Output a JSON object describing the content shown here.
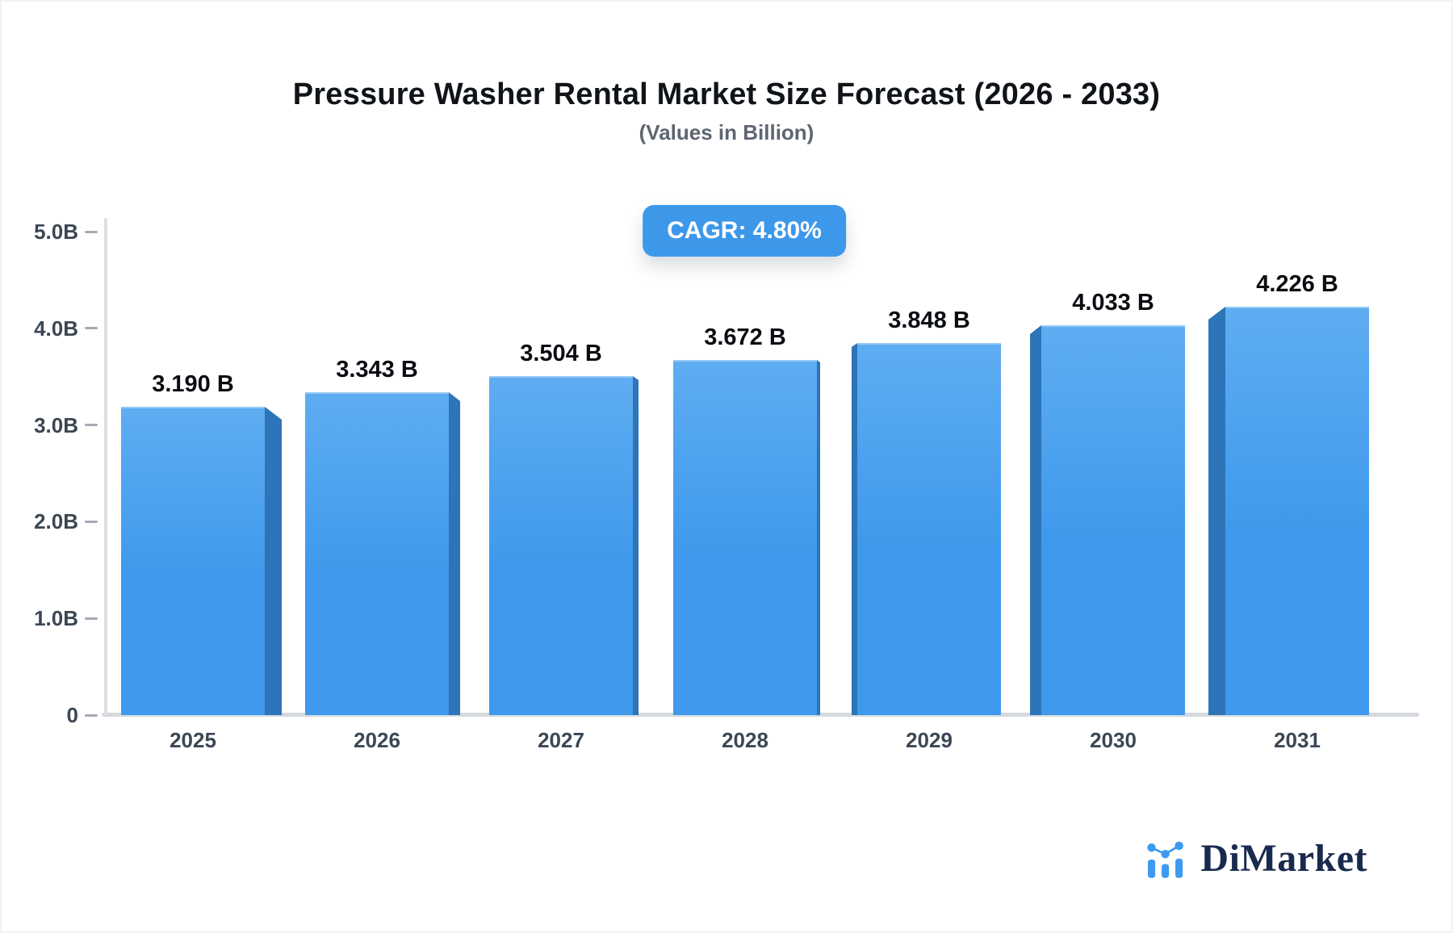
{
  "title": "Pressure Washer Rental Market Size Forecast (2026 - 2033)",
  "subtitle": "(Values in Billion)",
  "badge": {
    "label": "CAGR: 4.80%",
    "background": "#3d98ea",
    "text_color": "#ffffff"
  },
  "chart_data": {
    "type": "bar",
    "title": "Pressure Washer Rental Market Size Forecast (2026 - 2033)",
    "subtitle": "(Values in Billion)",
    "categories": [
      "2025",
      "2026",
      "2027",
      "2028",
      "2029",
      "2030",
      "2031"
    ],
    "values": [
      3.19,
      3.343,
      3.504,
      3.672,
      3.848,
      4.033,
      4.226
    ],
    "value_labels": [
      "3.190 B",
      "3.343 B",
      "3.504 B",
      "3.672 B",
      "3.848 B",
      "4.033 B",
      "4.226 B"
    ],
    "xlabel": "",
    "ylabel": "",
    "ylim": [
      0,
      5
    ],
    "yticks": [
      {
        "label": "5.0B",
        "value": 5.0
      },
      {
        "label": "4.0B",
        "value": 4.0
      },
      {
        "label": "3.0B",
        "value": 3.0
      },
      {
        "label": "2.0B",
        "value": 2.0
      },
      {
        "label": "1.0B",
        "value": 1.0
      },
      {
        "label": "0",
        "value": 0.0
      }
    ],
    "grid": false,
    "legend": false,
    "style_3d": true,
    "colors": {
      "bar_face_top": "#5fadf2",
      "bar_face_bottom": "#3f99ec",
      "bar_side": "#2d74b8",
      "axis_line": "#dde0e4",
      "baseline": "#d5d9dd",
      "tick_dash": "#a3abb4",
      "tick_label": "#3c4755",
      "value_label": "#0a0d12"
    }
  },
  "branding": {
    "logo_text": "DiMarket",
    "logo_text_color": "#182a4e",
    "icon_name": "bar-line-chart-icon",
    "icon_color": "#3d9bef"
  }
}
